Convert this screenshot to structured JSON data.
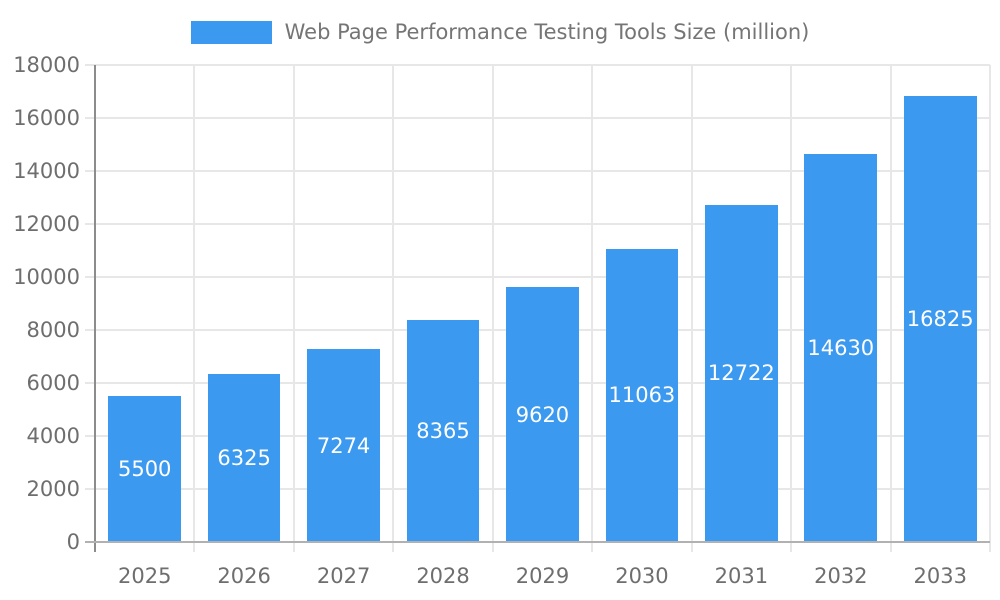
{
  "chart_data": {
    "type": "bar",
    "title": "Web Page Performance Testing Tools Size (million)",
    "legend": {
      "position": "top",
      "entries": [
        "Web Page Performance Testing Tools Size (million)"
      ]
    },
    "categories": [
      "2025",
      "2026",
      "2027",
      "2028",
      "2029",
      "2030",
      "2031",
      "2032",
      "2033"
    ],
    "values": [
      5500,
      6325,
      7274,
      8365,
      9620,
      11063,
      12722,
      14630,
      16825
    ],
    "series": [
      {
        "name": "Web Page Performance Testing Tools Size (million)",
        "values": [
          5500,
          6325,
          7274,
          8365,
          9620,
          11063,
          12722,
          14630,
          16825
        ]
      }
    ],
    "xlabel": "",
    "ylabel": "",
    "ylim": [
      0,
      18000
    ],
    "yticks": [
      0,
      2000,
      4000,
      6000,
      8000,
      10000,
      12000,
      14000,
      16000,
      18000
    ],
    "grid": true,
    "value_labels_shown": true,
    "colors": {
      "bar": "#3b99f0",
      "value_label": "#ffffff",
      "axis_label": "#6e6e6e",
      "title": "#757575",
      "gridline": "#e7e7e7",
      "y_axis_line": "#8c8c8c",
      "baseline": "#b1b1b1"
    }
  }
}
